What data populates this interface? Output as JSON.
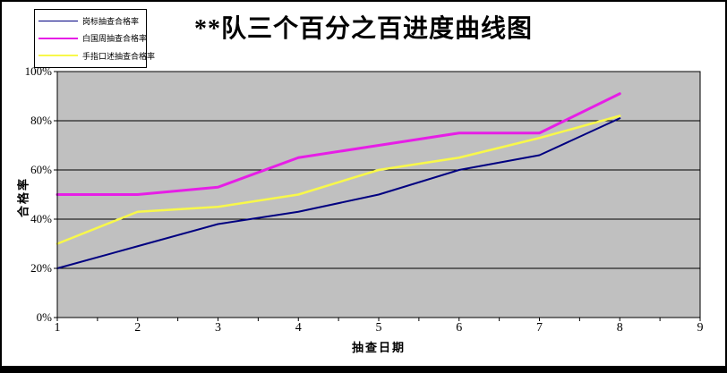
{
  "chart_data": {
    "type": "line",
    "title": "**队三个百分之百进度曲线图",
    "xlabel": "抽查日期",
    "ylabel": "合格率",
    "x": [
      1,
      2,
      3,
      4,
      5,
      6,
      7,
      8
    ],
    "xlim": [
      1,
      9
    ],
    "ylim": [
      0,
      100
    ],
    "xticks": [
      1,
      2,
      3,
      4,
      5,
      6,
      7,
      8,
      9
    ],
    "yticks": [
      0,
      20,
      40,
      60,
      80,
      100
    ],
    "ytick_suffix": "%",
    "grid": true,
    "legend_position": "top-left",
    "plot_bg_color": "#c0c0c0",
    "grid_color": "#000000",
    "series": [
      {
        "name": "岗标抽查合格率",
        "color": "#000080",
        "width": 2,
        "values": [
          20,
          29,
          38,
          43,
          50,
          60,
          66,
          81
        ]
      },
      {
        "name": "白国周抽查合格率",
        "color": "#e61ee6",
        "width": 3,
        "values": [
          50,
          50,
          53,
          65,
          70,
          75,
          75,
          91
        ]
      },
      {
        "name": "手指口述抽查合格率",
        "color": "#f8f84a",
        "width": 2.5,
        "values": [
          30,
          43,
          45,
          50,
          60,
          65,
          73,
          82
        ]
      }
    ]
  }
}
